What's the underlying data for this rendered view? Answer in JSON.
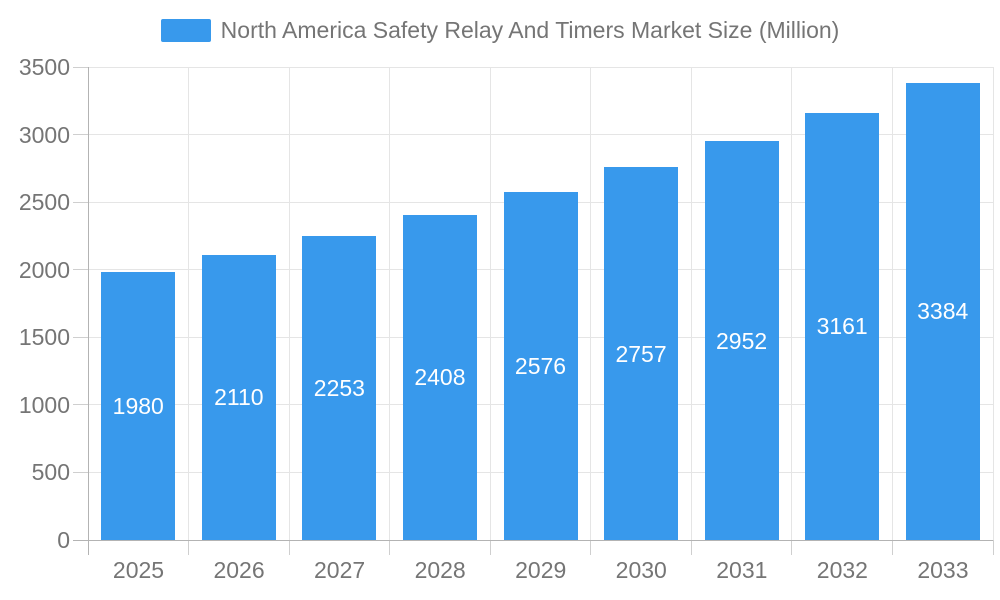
{
  "legend": {
    "label": "North America Safety Relay And Timers Market Size (Million)"
  },
  "colors": {
    "bar": "#3899EC",
    "grid": "#e5e5e5",
    "axis": "#b3b3b3",
    "tick": "#cfcfcf",
    "axis_text": "#757575",
    "data_label": "#ffffff",
    "background": "#ffffff"
  },
  "chart_data": {
    "type": "bar",
    "title": "North America Safety Relay And Timers Market Size (Million)",
    "categories": [
      "2025",
      "2026",
      "2027",
      "2028",
      "2029",
      "2030",
      "2031",
      "2032",
      "2033"
    ],
    "values": [
      1980,
      2110,
      2253,
      2408,
      2576,
      2757,
      2952,
      3161,
      3384
    ],
    "xlabel": "",
    "ylabel": "",
    "ylim": [
      0,
      3500
    ],
    "ytick_step": 500,
    "ytick_labels": [
      "0",
      "500",
      "1000",
      "1500",
      "2000",
      "2500",
      "3000",
      "3500"
    ],
    "grid": true,
    "legend_position": "top",
    "data_labels": "inside-center-white",
    "bar_color": "#3899EC"
  }
}
